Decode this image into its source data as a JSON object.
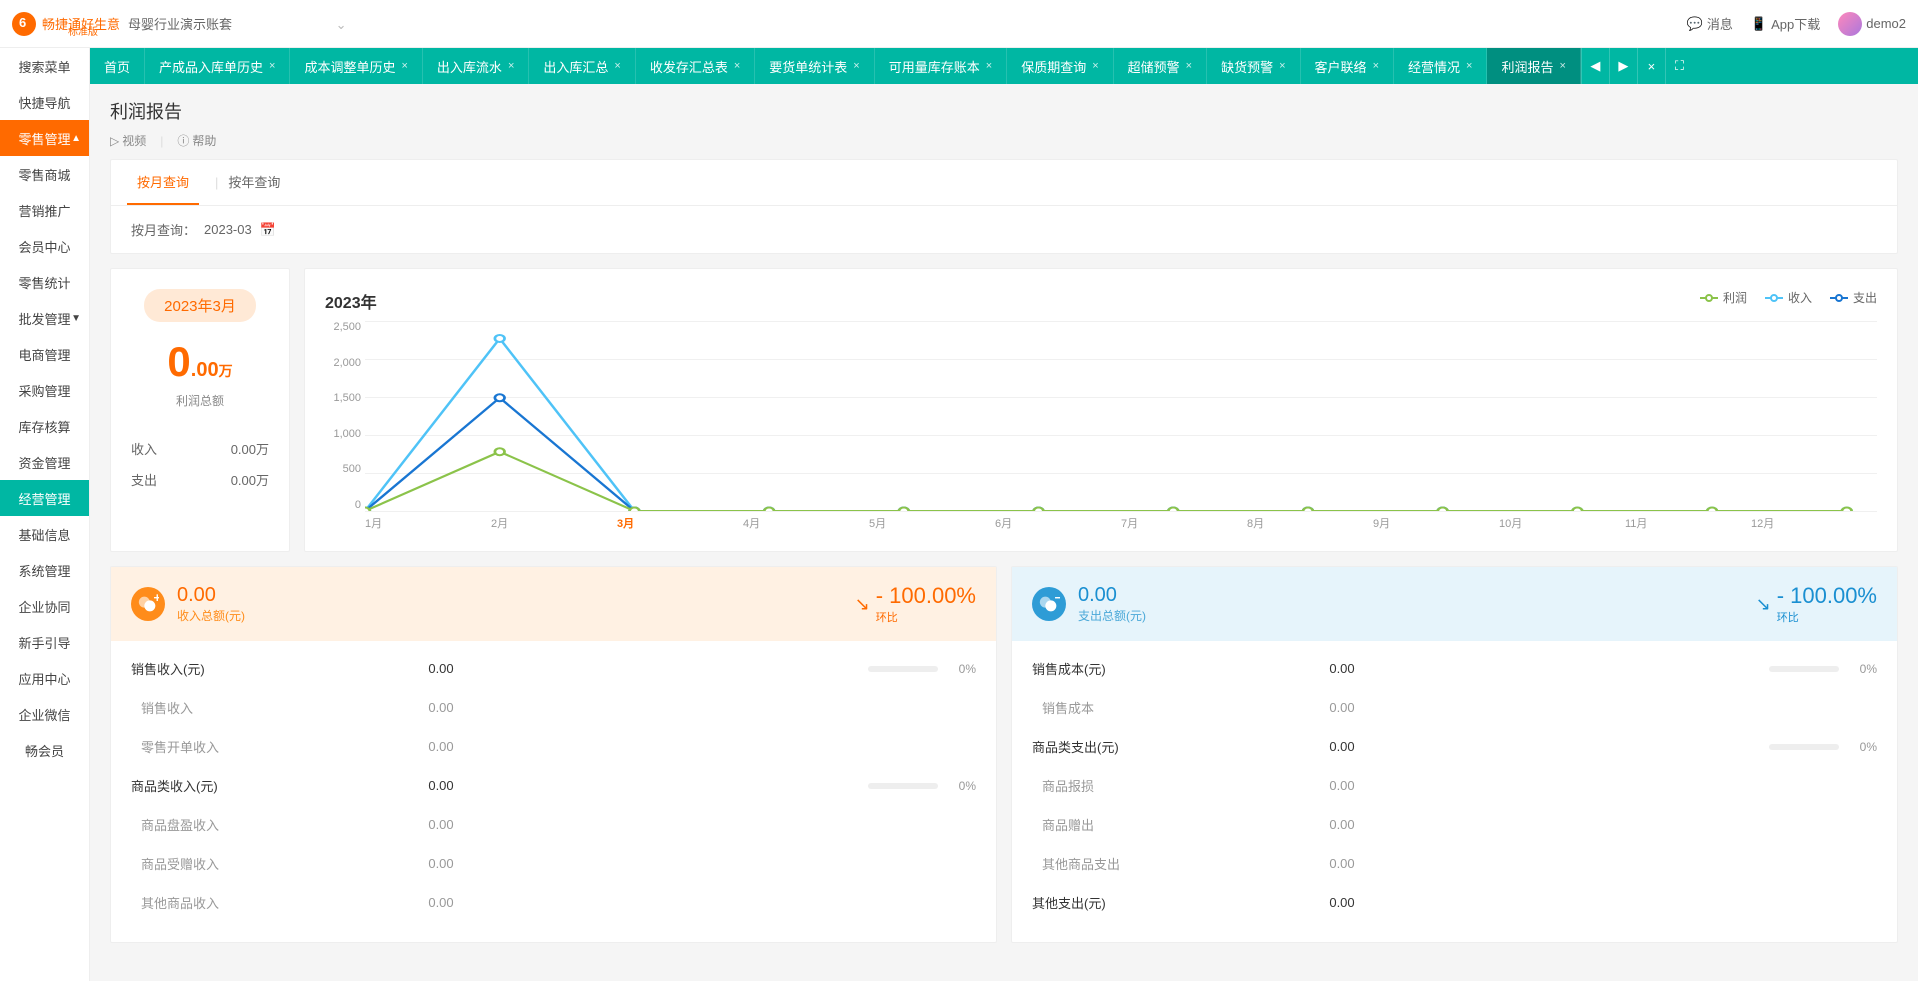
{
  "brand": {
    "name": "畅捷通好生意",
    "edition": "标准版"
  },
  "account_selector": "母婴行业演示账套",
  "top_actions": {
    "msg": "消息",
    "app": "App下载",
    "user": "demo2"
  },
  "sidebar": {
    "items": [
      {
        "label": "搜索菜单"
      },
      {
        "label": "快捷导航"
      },
      {
        "label": "零售管理",
        "caret": "▲",
        "active": true
      },
      {
        "label": "零售商城"
      },
      {
        "label": "营销推广"
      },
      {
        "label": "会员中心"
      },
      {
        "label": "零售统计"
      },
      {
        "label": "批发管理",
        "caret": "▼"
      },
      {
        "label": "电商管理"
      },
      {
        "label": "采购管理"
      },
      {
        "label": "库存核算"
      },
      {
        "label": "资金管理"
      },
      {
        "label": "经营管理",
        "active2": true
      },
      {
        "label": "基础信息"
      },
      {
        "label": "系统管理"
      },
      {
        "label": "企业协同"
      },
      {
        "label": "新手引导"
      },
      {
        "label": "应用中心"
      },
      {
        "label": "企业微信"
      },
      {
        "label": "畅会员"
      }
    ]
  },
  "tabs": [
    {
      "label": "首页",
      "closable": false
    },
    {
      "label": "产成品入库单历史",
      "closable": true
    },
    {
      "label": "成本调整单历史",
      "closable": true
    },
    {
      "label": "出入库流水",
      "closable": true
    },
    {
      "label": "出入库汇总",
      "closable": true
    },
    {
      "label": "收发存汇总表",
      "closable": true
    },
    {
      "label": "要货单统计表",
      "closable": true
    },
    {
      "label": "可用量库存账本",
      "closable": true
    },
    {
      "label": "保质期查询",
      "closable": true
    },
    {
      "label": "超储预警",
      "closable": true
    },
    {
      "label": "缺货预警",
      "closable": true
    },
    {
      "label": "客户联络",
      "closable": true
    },
    {
      "label": "经营情况",
      "closable": true
    },
    {
      "label": "利润报告",
      "closable": true,
      "active": true
    }
  ],
  "page": {
    "title": "利润报告",
    "video": "视频",
    "help": "帮助",
    "query_tabs": {
      "month": "按月查询",
      "year": "按年查询"
    },
    "query_label": "按月查询：",
    "query_value": "2023-03"
  },
  "summary": {
    "period": "2023年3月",
    "big_int": "0",
    "big_dec": ".00",
    "big_unit": "万",
    "big_label": "利润总额",
    "income_label": "收入",
    "income_value": "0.00万",
    "expense_label": "支出",
    "expense_value": "0.00万"
  },
  "chart": {
    "title": "2023年",
    "legend": {
      "profit": "利润",
      "income": "收入",
      "expense": "支出"
    },
    "colors": {
      "profit": "#8bc34a",
      "income": "#4fc3f7",
      "expense": "#1976d2"
    },
    "y_ticks": [
      "2,500",
      "2,000",
      "1,500",
      "1,000",
      "500",
      "0"
    ],
    "y_max": 2500,
    "x_labels": [
      "1月",
      "2月",
      "3月",
      "4月",
      "5月",
      "6月",
      "7月",
      "8月",
      "9月",
      "10月",
      "11月",
      "12月"
    ],
    "highlight_index": 2,
    "series": {
      "profit": [
        0,
        780,
        0,
        0,
        0,
        0,
        0,
        0,
        0,
        0,
        0,
        0
      ],
      "income": [
        0,
        2270,
        0,
        0,
        0,
        0,
        0,
        0,
        0,
        0,
        0,
        0
      ],
      "expense": [
        0,
        1490,
        0,
        0,
        0,
        0,
        0,
        0,
        0,
        0,
        0,
        0
      ]
    },
    "series_draw_upto": {
      "profit": 11,
      "income": 11,
      "expense": 8
    }
  },
  "income": {
    "head_value": "0.00",
    "head_label": "收入总额(元)",
    "hb_label": "环比",
    "hb_value": "- 100.00%",
    "rows": [
      {
        "label": "销售收入(元)",
        "value": "0.00",
        "pct": "0%",
        "sub": false,
        "bar": true
      },
      {
        "label": "销售收入",
        "value": "0.00",
        "sub": true,
        "bar": false
      },
      {
        "label": "零售开单收入",
        "value": "0.00",
        "sub": true,
        "bar": false
      },
      {
        "label": "商品类收入(元)",
        "value": "0.00",
        "pct": "0%",
        "sub": false,
        "bar": true
      },
      {
        "label": "商品盘盈收入",
        "value": "0.00",
        "sub": true,
        "bar": false
      },
      {
        "label": "商品受赠收入",
        "value": "0.00",
        "sub": true,
        "bar": false
      },
      {
        "label": "其他商品收入",
        "value": "0.00",
        "sub": true,
        "bar": false
      }
    ]
  },
  "expense": {
    "head_value": "0.00",
    "head_label": "支出总额(元)",
    "hb_label": "环比",
    "hb_value": "- 100.00%",
    "rows": [
      {
        "label": "销售成本(元)",
        "value": "0.00",
        "pct": "0%",
        "sub": false,
        "bar": true
      },
      {
        "label": "销售成本",
        "value": "0.00",
        "sub": true,
        "bar": false
      },
      {
        "label": "商品类支出(元)",
        "value": "0.00",
        "pct": "0%",
        "sub": false,
        "bar": true
      },
      {
        "label": "商品报损",
        "value": "0.00",
        "sub": true,
        "bar": false
      },
      {
        "label": "商品赠出",
        "value": "0.00",
        "sub": true,
        "bar": false
      },
      {
        "label": "其他商品支出",
        "value": "0.00",
        "sub": true,
        "bar": false
      },
      {
        "label": "其他支出(元)",
        "value": "0.00",
        "sub": false,
        "bar": false
      }
    ]
  }
}
